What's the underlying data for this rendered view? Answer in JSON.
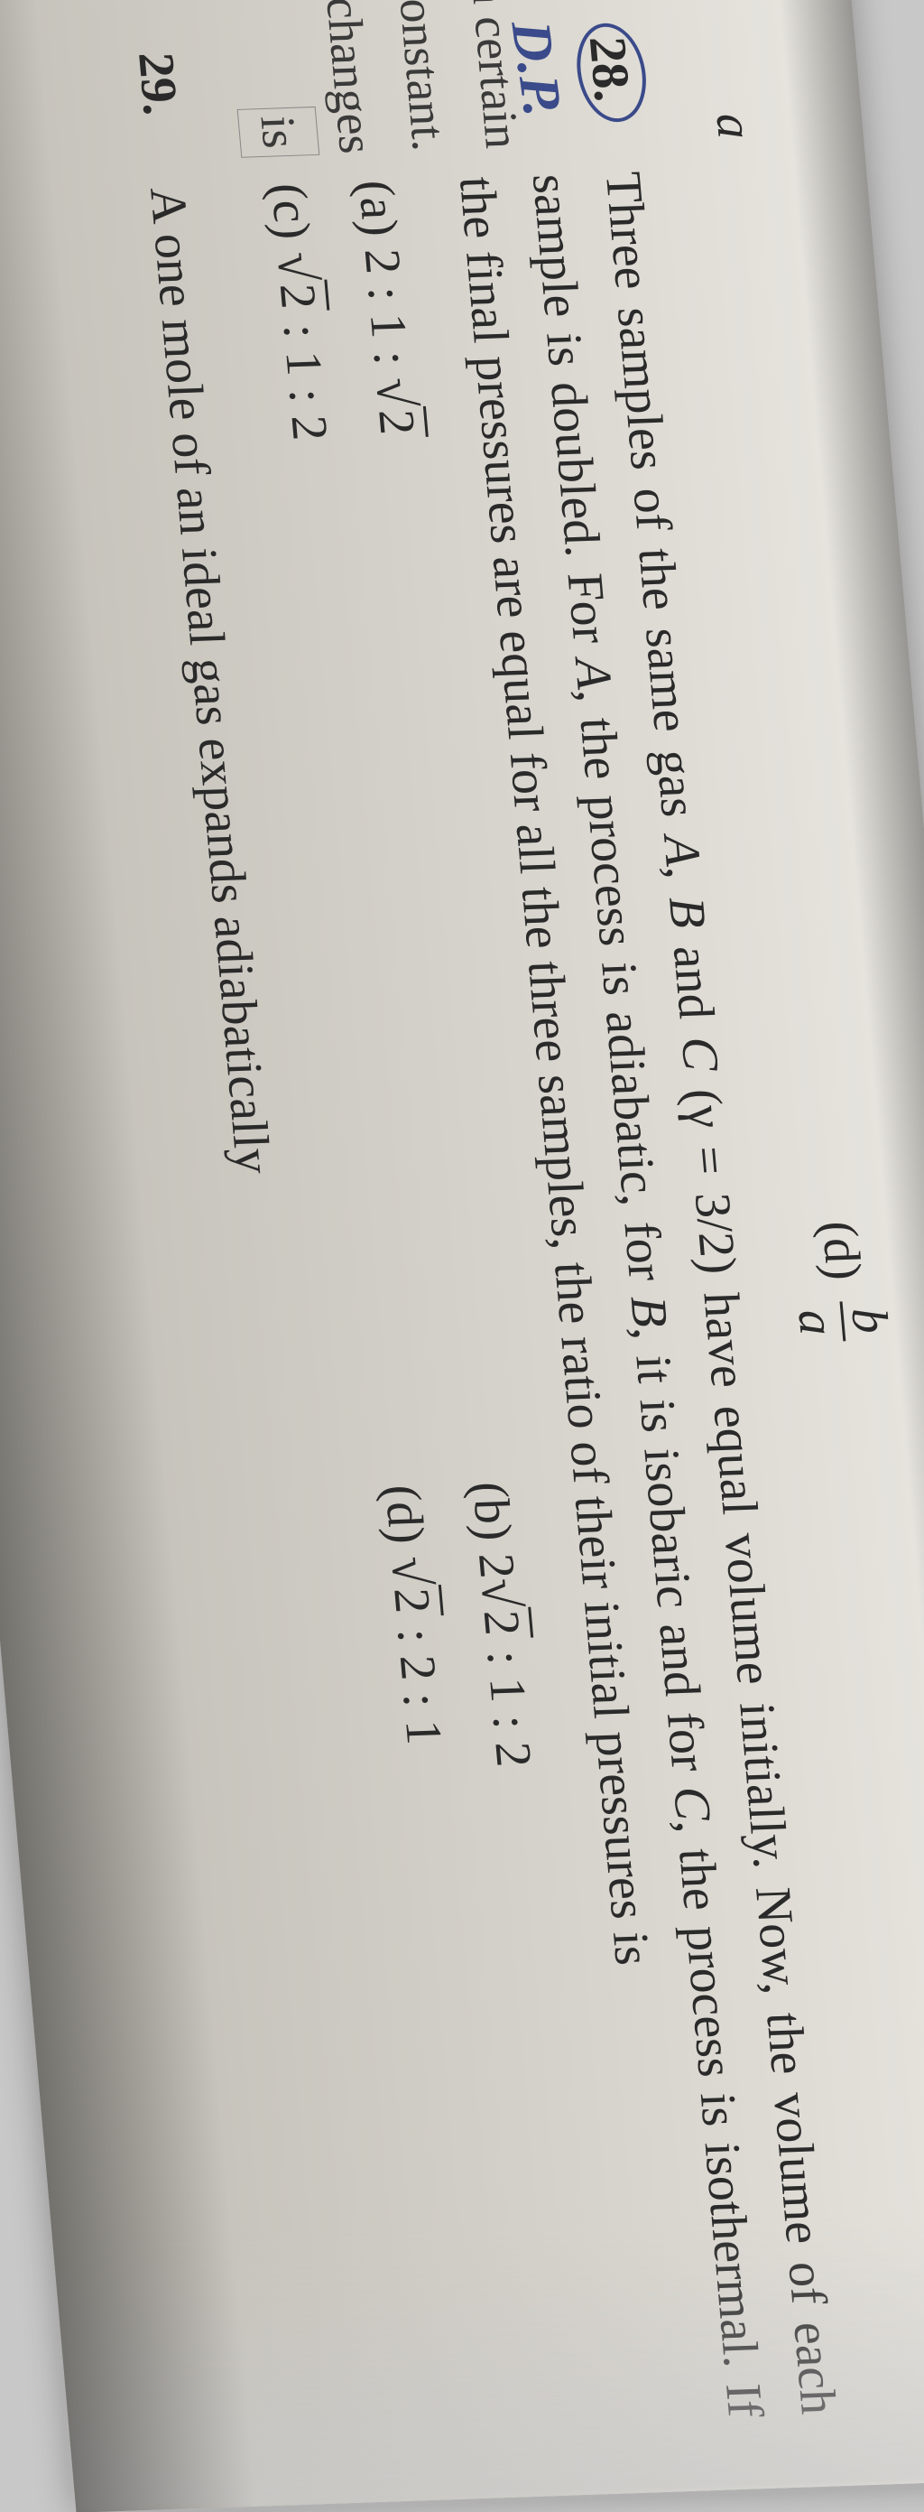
{
  "topFragments": {
    "leftVar": "a",
    "optionD": {
      "label": "(d)",
      "numerator": "b",
      "denominator": "a"
    }
  },
  "question28": {
    "number": "28.",
    "handwrittenNote": "D.P.",
    "text": "Three samples of the same gas A, B and C (γ = 3/2) have equal volume initially. Now, the volume of each sample is doubled. For A, the process is adiabatic, for B, it is isobaric and for C, the process is isothermal. If the final pressures are equal for all the three samples, the ratio of their initial pressures is",
    "options": {
      "a": {
        "label": "(a)",
        "value": "2 : 1 : √2"
      },
      "b": {
        "label": "(b)",
        "value": "2√2 : 1 : 2"
      },
      "c": {
        "label": "(c)",
        "value": "√2 : 1 : 2"
      },
      "d": {
        "label": "(d)",
        "value": "√2 : 2 : 1"
      }
    }
  },
  "question29": {
    "number": "29.",
    "partialText": "A one mole of an ideal gas expands adiabatically"
  },
  "leftEdge": {
    "line1": "f a certain",
    "line2": "s constant.",
    "line3": "e changes",
    "line4": "is"
  },
  "colors": {
    "pageBg": "#d8d5ce",
    "textColor": "#2a2a2a",
    "inkBlue": "#3a4a8a"
  }
}
